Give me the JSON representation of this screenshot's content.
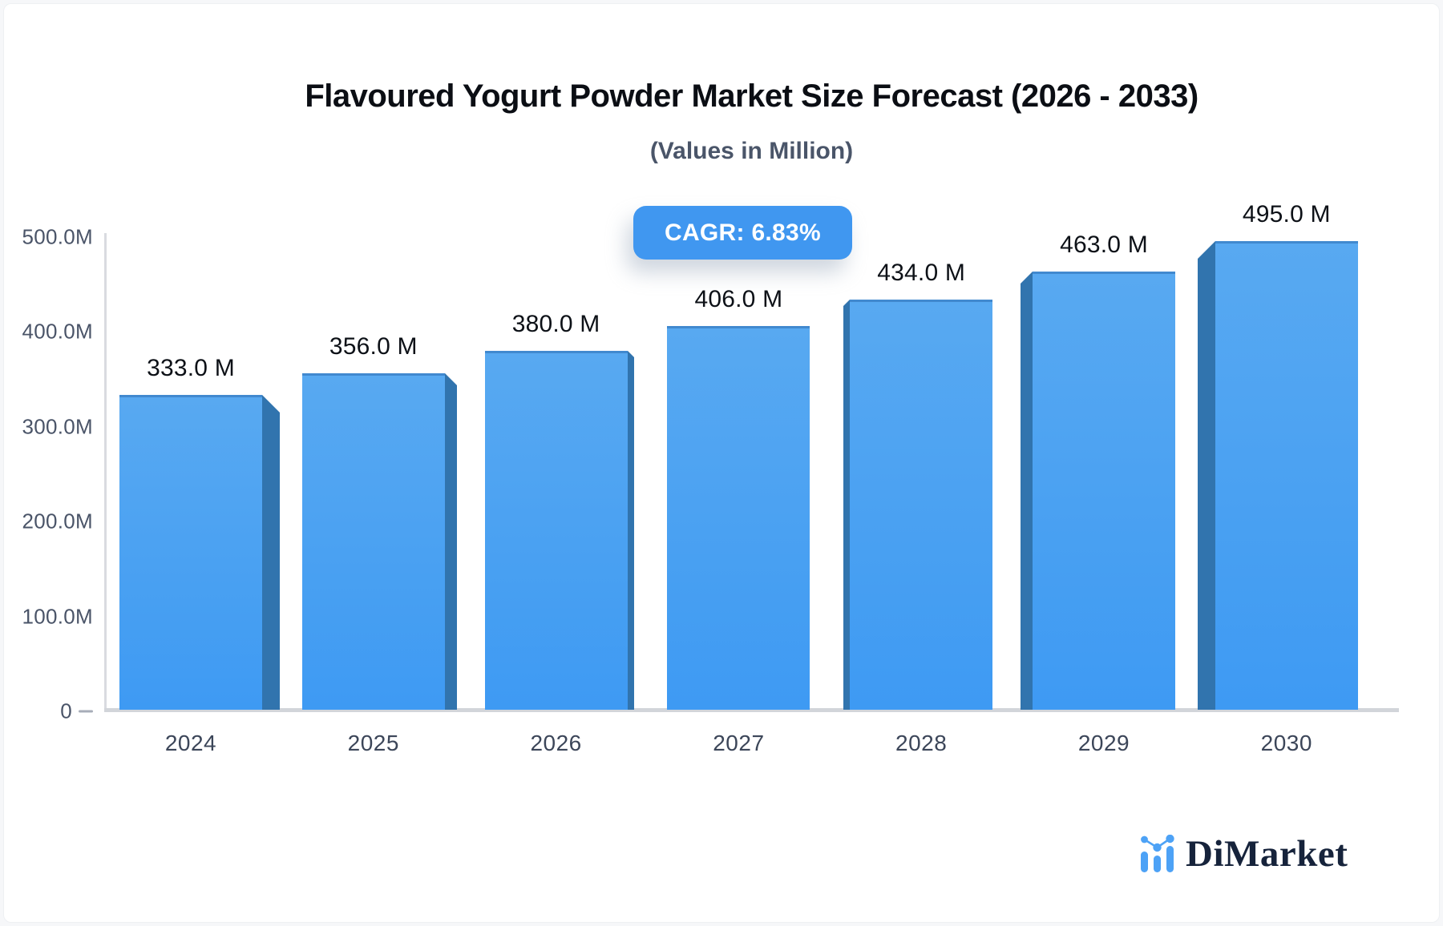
{
  "title": "Flavoured Yogurt Powder Market Size Forecast (2026 - 2033)",
  "subtitle": "(Values in Million)",
  "badge": {
    "label": "CAGR: 6.83%",
    "color": "#4097f0"
  },
  "brand": {
    "name": "DiMarket",
    "icon": "mini-bar-chart-with-dots",
    "icon_color": "#4da2f6",
    "text_color": "#16233b"
  },
  "chart_data": {
    "type": "bar",
    "categories": [
      "2024",
      "2025",
      "2026",
      "2027",
      "2028",
      "2029",
      "2030"
    ],
    "values": [
      333,
      356,
      380,
      406,
      434,
      463,
      495
    ],
    "value_labels": [
      "333.0 M",
      "356.0 M",
      "380.0 M",
      "406.0 M",
      "434.0 M",
      "463.0 M",
      "495.0 M"
    ],
    "title": "Flavoured Yogurt Powder Market Size Forecast (2026 - 2033)",
    "xlabel": "",
    "ylabel": "",
    "ylim": [
      0,
      500
    ],
    "y_ticks": [
      {
        "label": "0",
        "value": 0
      },
      {
        "label": "100.0M",
        "value": 100
      },
      {
        "label": "200.0M",
        "value": 200
      },
      {
        "label": "300.0M",
        "value": 300
      },
      {
        "label": "400.0M",
        "value": 400
      },
      {
        "label": "500.0M",
        "value": 500
      }
    ],
    "grid": false,
    "legend": false,
    "bar_color_top": "#58a9f1",
    "bar_color_bottom": "#3e9af3",
    "bar_side_color": "#3174ae",
    "bar_top_edge_color": "#4189cf",
    "style_3d": "perspective toward center: side faces point right for left bars, left for right bars"
  }
}
